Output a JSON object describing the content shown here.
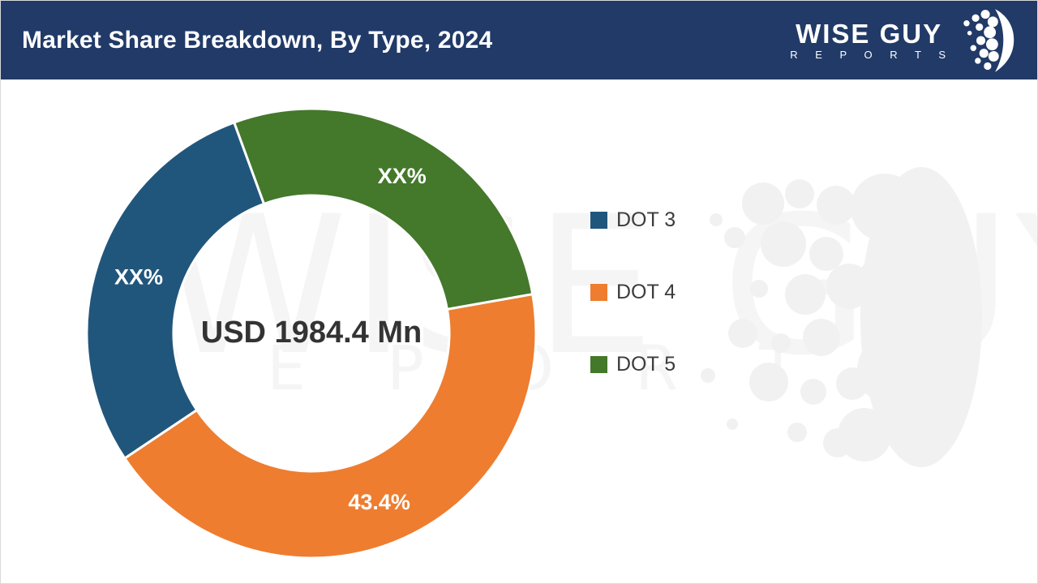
{
  "header": {
    "title": "Market Share Breakdown, By Type, 2024",
    "logo": {
      "line1": "WISE GUY",
      "line2": "R E P O R T S"
    }
  },
  "watermark": {
    "line1": "WISE GUY",
    "line2": "R E P O R T S"
  },
  "legend": {
    "items": [
      {
        "label": "DOT 3",
        "color": "#21567C"
      },
      {
        "label": "DOT 4",
        "color": "#EE7D30"
      },
      {
        "label": "DOT 5",
        "color": "#44782B"
      }
    ]
  },
  "chart_data": {
    "type": "pie",
    "donut": true,
    "title": "Market Share Breakdown, By Type, 2024",
    "center_label": "USD 1984.4 Mn",
    "legend_position": "right",
    "start_angle_deg": 236.2,
    "segments": [
      {
        "name": "DOT 3",
        "color": "#21567C",
        "percent": 28.8,
        "label": "XX%"
      },
      {
        "name": "DOT 5",
        "color": "#44782B",
        "percent": 27.8,
        "label": "XX%"
      },
      {
        "name": "DOT 4",
        "color": "#EE7D30",
        "percent": 43.4,
        "label": "43.4%"
      }
    ]
  },
  "colors": {
    "header_bg": "#213A67",
    "center_text": "#333333",
    "watermark": "#F5F5F5",
    "segment_divider": "#FFFFFF"
  }
}
